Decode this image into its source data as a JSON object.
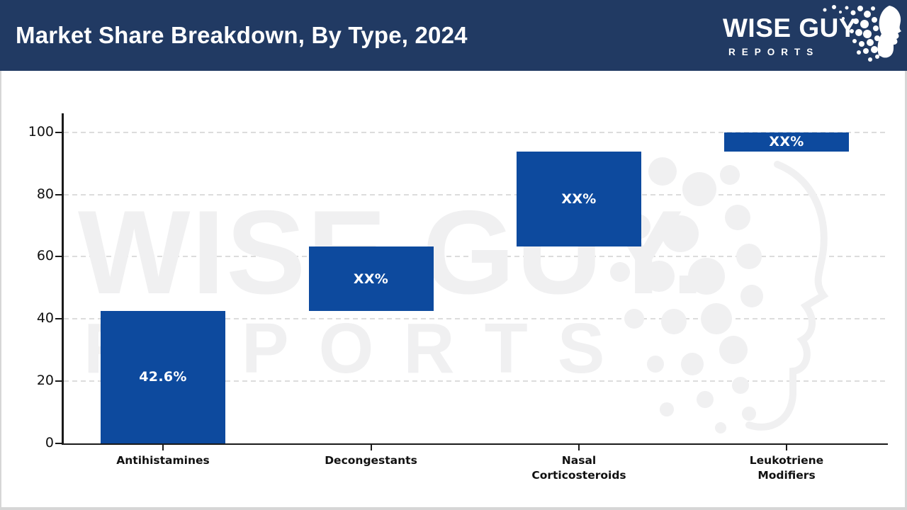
{
  "header": {
    "title": "Market Share Breakdown, By Type, 2024",
    "logo": {
      "line1": "WISE GUY",
      "line2": "R E P O R T S"
    }
  },
  "watermark": {
    "line1": "WISE GUY.",
    "line2": "REPORTS"
  },
  "colors": {
    "header_bg": "#213A63",
    "bar": "#0D4A9E",
    "axis": "#1a1a1a",
    "grid": "#dcdcdc",
    "watermark": "#f0f0f1",
    "bar_label_text": "#ffffff"
  },
  "chart_data": {
    "type": "bar",
    "subtype": "waterfall",
    "title": "Market Share Breakdown, By Type, 2024",
    "categories": [
      "Antihistamines",
      "Decongestants",
      "Nasal\nCorticosteroids",
      "Leukotriene\nModifiers"
    ],
    "bars": [
      {
        "category": "Antihistamines",
        "start": 0,
        "end": 42.6,
        "label": "42.6%"
      },
      {
        "category": "Decongestants",
        "start": 42.6,
        "end": 63.2,
        "label": "XX%"
      },
      {
        "category": "Nasal Corticosteroids",
        "start": 63.2,
        "end": 93.8,
        "label": "XX%"
      },
      {
        "category": "Leukotriene Modifiers",
        "start": 93.8,
        "end": 100,
        "label": "XX%"
      }
    ],
    "ylim": [
      0,
      100
    ],
    "yticks": [
      0,
      20,
      40,
      60,
      80,
      100
    ],
    "xlabel": "",
    "ylabel": "",
    "grid": "horizontal-dashed",
    "legend": "none",
    "bar_color": "#0D4A9E"
  }
}
